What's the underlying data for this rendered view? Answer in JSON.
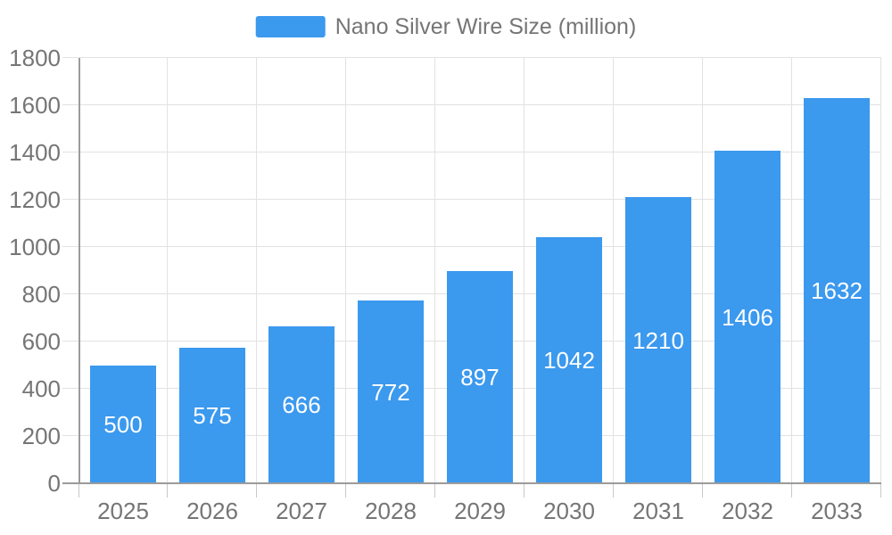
{
  "chart_data": {
    "type": "bar",
    "legend": "Nano Silver Wire Size (million)",
    "legend_position": "top-center",
    "categories": [
      "2025",
      "2026",
      "2027",
      "2028",
      "2029",
      "2030",
      "2031",
      "2032",
      "2033"
    ],
    "values": [
      500,
      575,
      666,
      772,
      897,
      1042,
      1210,
      1406,
      1632
    ],
    "value_labels_shown": true,
    "xlabel": "",
    "ylabel": "",
    "ylim": [
      0,
      1800
    ],
    "yticks": [
      0,
      200,
      400,
      600,
      800,
      1000,
      1200,
      1400,
      1600,
      1800
    ],
    "grid": true,
    "colors": {
      "bar": "#3B99EE",
      "grid": "#E2E2E2",
      "axis": "#9B9B9B",
      "tick": "#C9C9C9",
      "axis_label_text": "#757575",
      "value_label_text": "#FFFFFF",
      "background": "#FFFFFF"
    }
  }
}
